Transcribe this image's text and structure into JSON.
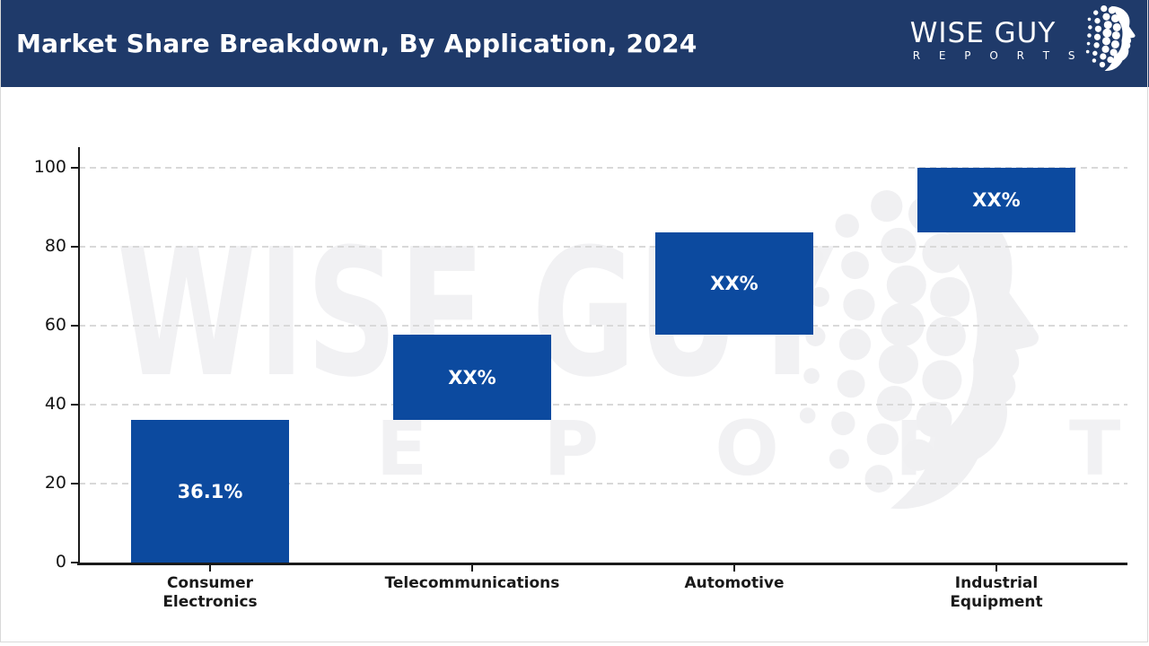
{
  "header": {
    "title": "Market Share Breakdown, By Application, 2024",
    "logo": {
      "name_top": "WISE GUY",
      "name_bottom": "R E P O R T S"
    }
  },
  "watermark": {
    "line1": "WISE GUY",
    "line2": "R E P O R T S"
  },
  "chart_data": {
    "type": "bar",
    "subtype": "waterfall",
    "title": "Market Share Breakdown, By Application, 2024",
    "categories": [
      "Consumer Electronics",
      "Telecommunications",
      "Automotive",
      "Industrial Equipment"
    ],
    "category_lines": [
      [
        "Consumer",
        "Electronics"
      ],
      [
        "Telecommunications"
      ],
      [
        "Automotive"
      ],
      [
        "Industrial",
        "Equipment"
      ]
    ],
    "segments": [
      {
        "category": "Consumer Electronics",
        "start": 0,
        "end": 36.1,
        "value": 36.1,
        "label": "36.1%"
      },
      {
        "category": "Telecommunications",
        "start": 36.1,
        "end": 57.7,
        "value": 21.6,
        "label": "XX%"
      },
      {
        "category": "Automotive",
        "start": 57.7,
        "end": 83.6,
        "value": 25.9,
        "label": "XX%"
      },
      {
        "category": "Industrial Equipment",
        "start": 83.6,
        "end": 100,
        "value": 16.4,
        "label": "XX%"
      }
    ],
    "yticks": [
      0,
      20,
      40,
      60,
      80,
      100
    ],
    "ylim": [
      0,
      105
    ],
    "xlabel": "",
    "ylabel": "",
    "grid": "dashed-horizontal",
    "legend": "none",
    "colors": {
      "bar": "#0c4a9f",
      "bar_label": "#ffffff",
      "grid": "#d9d9d9",
      "axis": "#1a1a1a",
      "tick_label": "#141414",
      "category_label": "#1a1a1a"
    }
  },
  "theme": {
    "header_bg": "#1f3a6a",
    "header_text": "#ffffff",
    "page_bg": "#ffffff",
    "watermark_color": "#f1f1f3"
  }
}
